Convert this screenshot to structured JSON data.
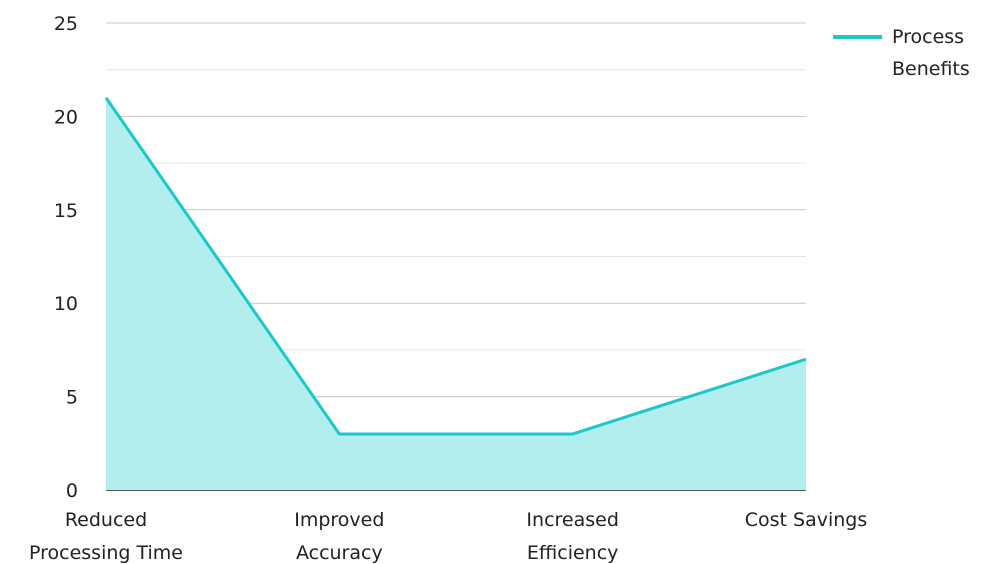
{
  "colors": {
    "line": "#1cc8c8",
    "fill": "#b2eeee",
    "grid_major": "#c8c8c8",
    "grid_minor": "#e6e6e6",
    "axis": "#222222"
  },
  "chart_data": {
    "type": "area",
    "categories": [
      [
        "Reduced",
        "Processing Time"
      ],
      [
        "Improved",
        "Accuracy"
      ],
      [
        "Increased",
        "Efficiency"
      ],
      [
        "Cost Savings"
      ]
    ],
    "series": [
      {
        "name": "Process Benefits",
        "values": [
          21,
          3,
          3,
          7
        ]
      }
    ],
    "ylim": [
      0,
      25
    ],
    "yticks": [
      0,
      5,
      10,
      15,
      20,
      25
    ],
    "grid": true,
    "legend": {
      "position": "top-right",
      "lines": [
        "Process",
        "Benefits"
      ]
    }
  }
}
